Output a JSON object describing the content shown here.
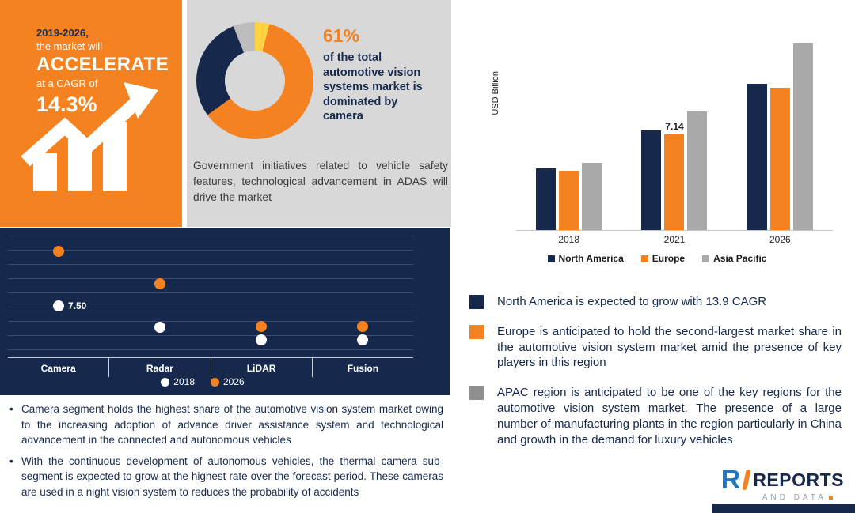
{
  "bullet_char": "•",
  "colors": {
    "orange": "#f58220",
    "navy": "#16294d",
    "gray_box": "#d8d8d8",
    "bar_gray": "#a9a9a9",
    "marker_gray": "#8f8f8f",
    "yellow": "#ffd23f",
    "light_gray": "#bdbdbd"
  },
  "promo": {
    "years": "2019-2026,",
    "line2": "the market will",
    "line3": "ACCELERATE",
    "line4": "at a CAGR of",
    "cagr": "14.3%"
  },
  "donut_panel": {
    "pct": "61%",
    "headline": "of the total automotive vision systems market is dominated by camera",
    "subtext": "Government initiatives related to vehicle safety features, technological advancement in ADAS will drive the market"
  },
  "chart_data": [
    {
      "id": "camera-share-donut",
      "type": "pie",
      "title": "61% of the total automotive vision systems market is dominated by camera",
      "slices": [
        {
          "value": 4,
          "color": "#ffd23f"
        },
        {
          "value": 61,
          "color": "#f58220",
          "label": "camera"
        },
        {
          "value": 29,
          "color": "#16294d"
        },
        {
          "value": 6,
          "color": "#bdbdbd"
        }
      ]
    },
    {
      "id": "regional-market-bars",
      "type": "bar",
      "ylabel": "USD Billion",
      "ylim": [
        0,
        15
      ],
      "categories": [
        "2018",
        "2021",
        "2026"
      ],
      "series": [
        {
          "name": "North America",
          "color": "#16294d",
          "values": [
            4.6,
            7.4,
            10.9
          ]
        },
        {
          "name": "Europe",
          "color": "#f58220",
          "values": [
            4.4,
            7.14,
            10.6
          ]
        },
        {
          "name": "Asia Pacific",
          "color": "#a9a9a9",
          "values": [
            5.0,
            8.8,
            13.9
          ]
        }
      ],
      "data_labels": [
        {
          "series": "Europe",
          "category": "2021",
          "text": "7.14"
        }
      ],
      "legend_position": "bottom"
    },
    {
      "id": "segment-dot-plot",
      "type": "scatter",
      "categories": [
        "Camera",
        "Radar",
        "LiDAR",
        "Fusion"
      ],
      "ylim": [
        3,
        14
      ],
      "grid": true,
      "series": [
        {
          "name": "2018",
          "color": "#ffffff",
          "values": [
            7.5,
            5.5,
            4.3,
            4.3
          ]
        },
        {
          "name": "2026",
          "color": "#f58220",
          "values": [
            12.5,
            9.5,
            5.6,
            5.6
          ]
        }
      ],
      "data_labels": [
        {
          "series": "2018",
          "category": "Camera",
          "text": "7.50"
        }
      ],
      "legend_position": "bottom"
    }
  ],
  "right_bullets": [
    {
      "color": "#16294d",
      "text": "North America is expected to grow with 13.9 CAGR"
    },
    {
      "color": "#f58220",
      "text": "Europe is anticipated to hold the second-largest market share in the automotive vision system market amid the presence of key players in this region"
    },
    {
      "color": "#8f8f8f",
      "text": "APAC region is anticipated to be one of the key regions for the automotive vision system market. The presence of a large number of manufacturing plants in the region particularly in China and growth in the demand for luxury vehicles"
    }
  ],
  "bottom_bullets": [
    "Camera segment holds the highest share of the automotive vision system market owing to the increasing adoption of advance driver assistance system and technological advancement in the connected and autonomous vehicles",
    "With the continuous development of autonomous vehicles, the thermal camera sub-segment is expected to grow at the highest rate over the forecast period. These cameras are used in a night vision system to reduces the probability of accidents"
  ],
  "logo": {
    "monogram": "R",
    "name": "REPORTS",
    "tagline": "AND DATA"
  }
}
